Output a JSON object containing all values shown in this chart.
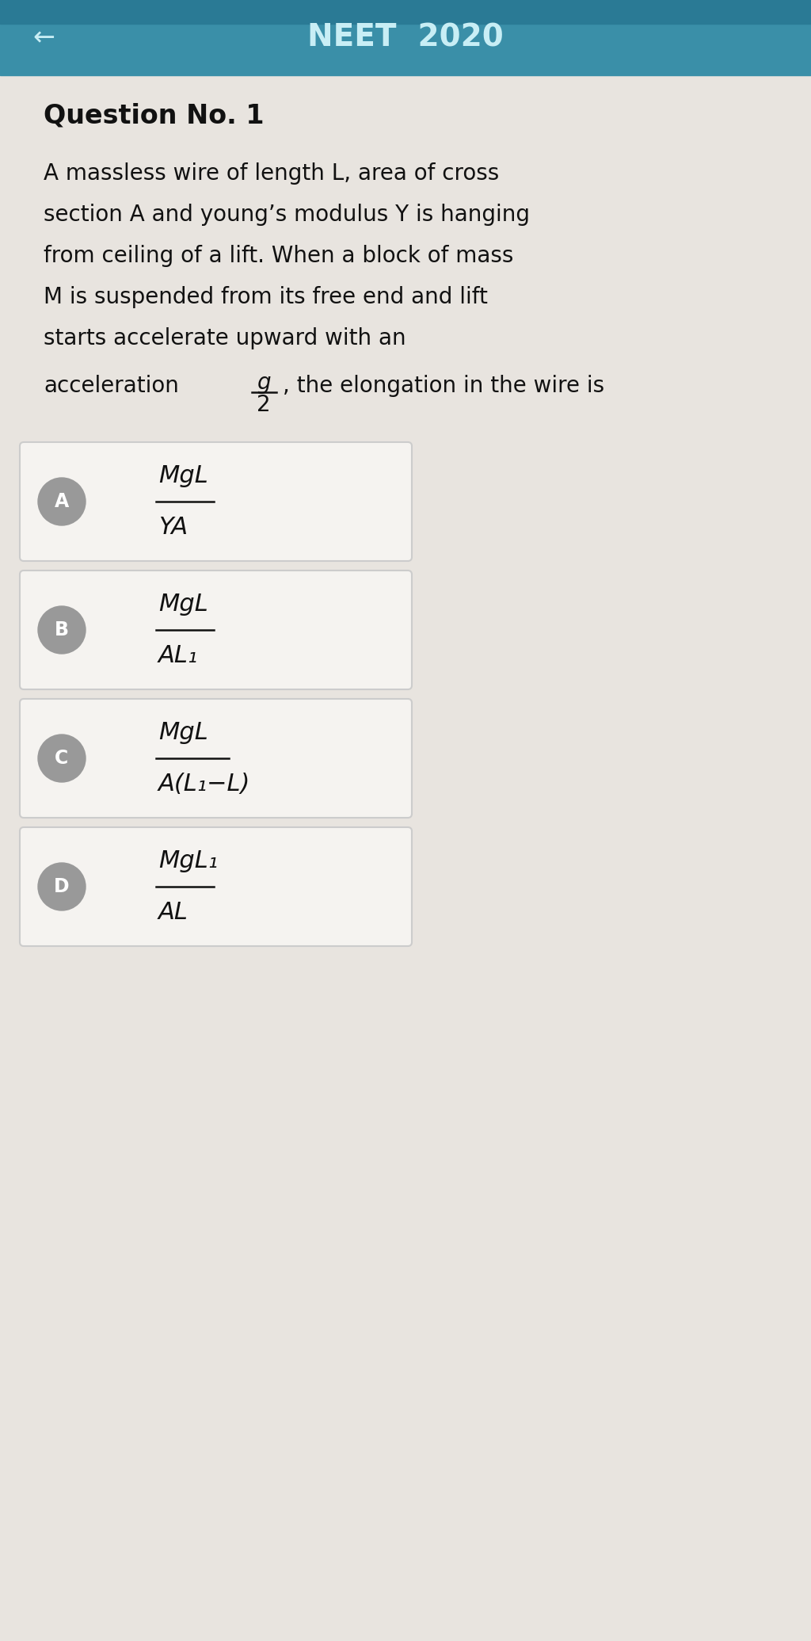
{
  "header_text": "NEET  2020",
  "header_bg": "#3a8fa8",
  "header_text_color": "#c8eef5",
  "bg_color": "#dedad5",
  "content_bg": "#e8e4df",
  "question_title": "Question No. 1",
  "question_body_lines": [
    "A massless wire of length L, area of cross",
    "section A and young’s modulus Y is hanging",
    "from ceiling of a lift. When a block of mass",
    "M is suspended from its free end and lift",
    "starts accelerate upward with an"
  ],
  "options": [
    {
      "label": "A",
      "numerator": "MgL",
      "denominator": "YA"
    },
    {
      "label": "B",
      "numerator": "MgL",
      "denominator": "AL₁"
    },
    {
      "label": "C",
      "numerator": "MgL",
      "denominator": "A(L₁−L)"
    },
    {
      "label": "D",
      "numerator": "MgL₁",
      "denominator": "AL"
    }
  ],
  "option_box_color": "#f5f3f0",
  "option_box_edge": "#cccccc",
  "option_label_bg": "#999999",
  "option_label_text": "#ffffff",
  "figsize": [
    10.24,
    20.71
  ],
  "dpi": 100
}
